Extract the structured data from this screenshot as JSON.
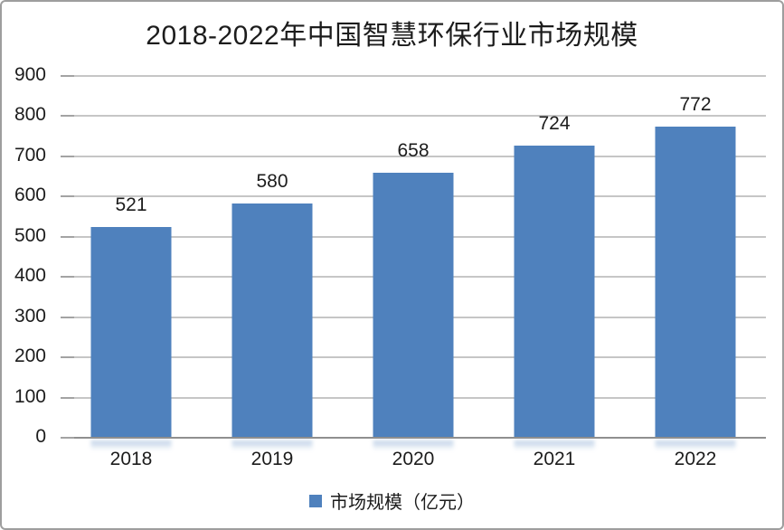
{
  "chart_data": {
    "type": "bar",
    "title": "2018-2022年中国智慧环保行业市场规模",
    "categories": [
      "2018",
      "2019",
      "2020",
      "2021",
      "2022"
    ],
    "series": [
      {
        "name": "市场规模（亿元）",
        "values": [
          521,
          580,
          658,
          724,
          772
        ]
      }
    ],
    "ylim": [
      0,
      900
    ],
    "yticks": [
      0,
      100,
      200,
      300,
      400,
      500,
      600,
      700,
      800,
      900
    ],
    "xlabel": "",
    "ylabel": "",
    "grid": true,
    "legend_position": "bottom",
    "bar_color": "#4f81bd"
  }
}
